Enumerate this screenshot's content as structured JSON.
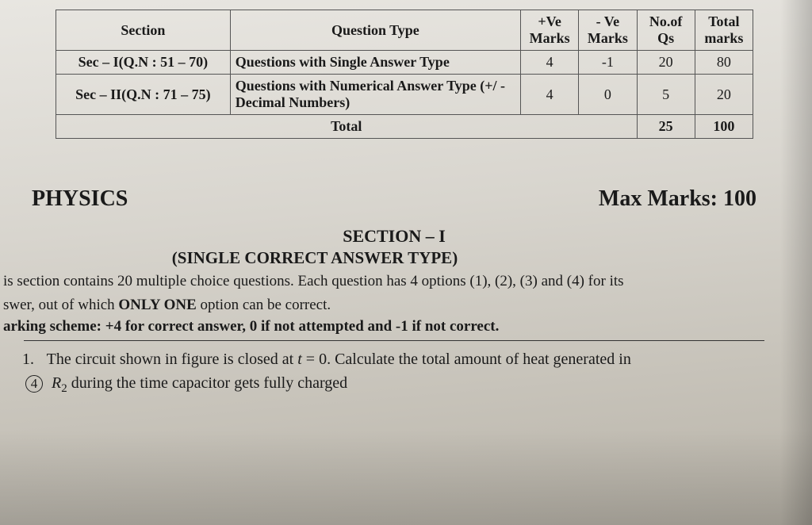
{
  "table": {
    "headers": {
      "section": "Section",
      "qtype": "Question Type",
      "pos": "+Ve",
      "pos2": "Marks",
      "neg": "- Ve",
      "neg2": "Marks",
      "nq": "No.of",
      "nq2": "Qs",
      "tot": "Total",
      "tot2": "marks"
    },
    "rows": [
      {
        "section": "Sec – I(Q.N : 51 – 70)",
        "qtype": "Questions with Single Answer Type",
        "pos": "4",
        "neg": "-1",
        "nq": "20",
        "tot": "80"
      },
      {
        "section": "Sec – II(Q.N : 71 – 75)",
        "qtype": "Questions with Numerical Answer Type (+/ - Decimal Numbers)",
        "pos": "4",
        "neg": "0",
        "nq": "5",
        "tot": "20"
      }
    ],
    "total_label": "Total",
    "total_nq": "25",
    "total_marks": "100"
  },
  "subject": "PHYSICS",
  "max_marks": "Max Marks: 100",
  "section_header": "SECTION – I",
  "section_sub": "(SINGLE CORRECT ANSWER TYPE)",
  "instructions_1": "is section contains 20 multiple choice questions. Each question has 4 options (1), (2), (3) and (4) for its",
  "instructions_2a": "swer, out of which ",
  "instructions_2b": "ONLY ONE",
  "instructions_2c": " option can be correct.",
  "scheme": "arking scheme: +4 for correct answer, 0 if not attempted and -1 if not correct.",
  "q1_num": "1.",
  "q1_line1a": "The circuit shown in figure is closed at ",
  "q1_var": "t",
  "q1_line1b": " = 0.  Calculate the total amount of heat generated in",
  "q1_opt_circ": "4",
  "q1_line2a": "R",
  "q1_line2sub": "2",
  "q1_line2b": " during the time capacitor gets fully charged"
}
